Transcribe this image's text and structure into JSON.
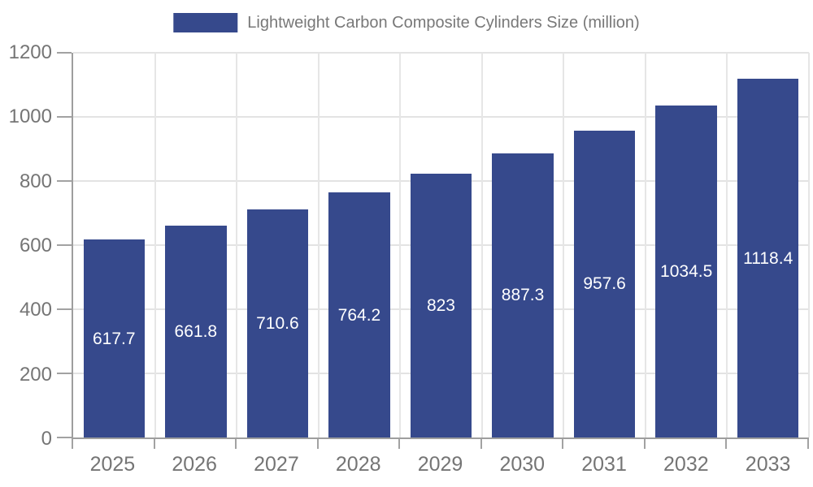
{
  "chart_data": {
    "type": "bar",
    "title": "Lightweight Carbon Composite Cylinders Size (million)",
    "categories": [
      "2025",
      "2026",
      "2027",
      "2028",
      "2029",
      "2030",
      "2031",
      "2032",
      "2033"
    ],
    "values": [
      617.7,
      661.8,
      710.6,
      764.2,
      823,
      887.3,
      957.6,
      1034.5,
      1118.4
    ],
    "value_labels": [
      "617.7",
      "661.8",
      "710.6",
      "764.2",
      "823",
      "887.3",
      "957.6",
      "1034.5",
      "1118.4"
    ],
    "xlabel": "",
    "ylabel": "",
    "ylim": [
      0,
      1200
    ],
    "yticks": [
      0,
      200,
      400,
      600,
      800,
      1000,
      1200
    ],
    "grid": true,
    "legend_position": "top",
    "colors": {
      "bar": "#36498c",
      "value_label": "#ffffff",
      "axis_text": "#757575",
      "legend_text": "#787878",
      "grid_line": "#e3e3e3",
      "axis_line": "#9e9e9e",
      "background": "#ffffff"
    }
  }
}
